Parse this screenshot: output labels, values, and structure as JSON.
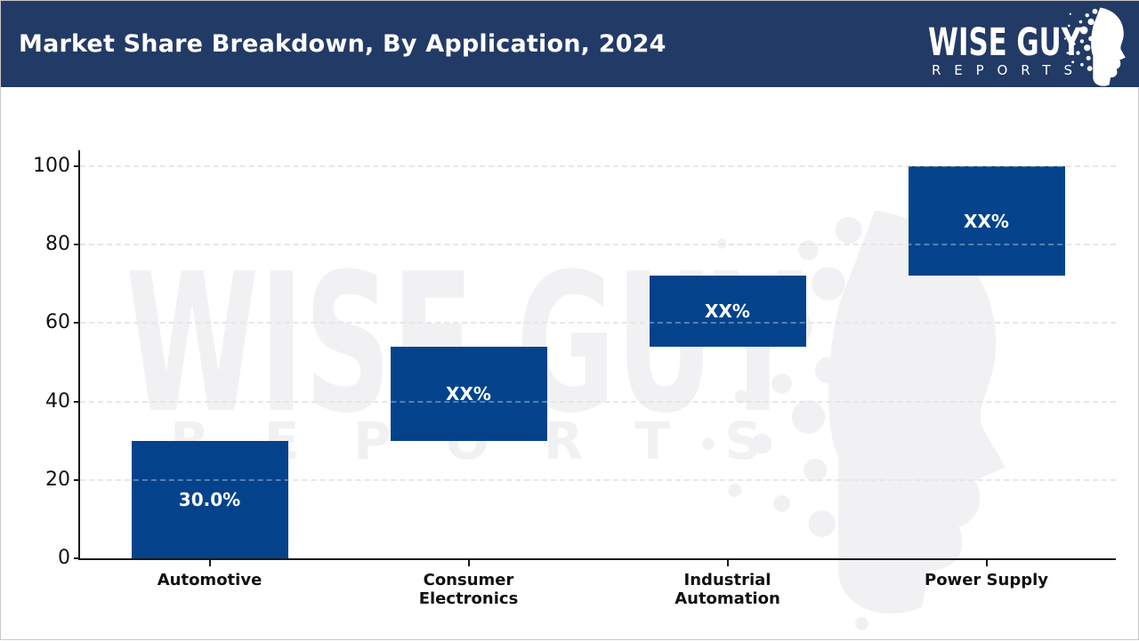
{
  "header": {
    "title": "Market Share Breakdown, By Application, 2024",
    "logo": {
      "line1": "WISE GUY",
      "line2": "REPORTS"
    }
  },
  "watermark": {
    "line1": "WISE GUY",
    "line2": "REPORTS"
  },
  "colors": {
    "header_bg": "#223a66",
    "bar": "#04438c",
    "grid": "#dcdcdc",
    "axis": "#1a1a1a",
    "bar_label": "#ffffff",
    "watermark": "#f1f1f3"
  },
  "chart_data": {
    "type": "bar",
    "subtype": "waterfall",
    "title": "Market Share Breakdown, By Application, 2024",
    "categories": [
      "Automotive",
      "Consumer Electronics",
      "Industrial Automation",
      "Power Supply"
    ],
    "category_lines": [
      [
        "Automotive"
      ],
      [
        "Consumer",
        "Electronics"
      ],
      [
        "Industrial",
        "Automation"
      ],
      [
        "Power Supply"
      ]
    ],
    "values": [
      30,
      24,
      18,
      28
    ],
    "cumulative_start": [
      0,
      30,
      54,
      72
    ],
    "cumulative_end": [
      30,
      54,
      72,
      100
    ],
    "bar_labels": [
      "30.0%",
      "XX%",
      "XX%",
      "XX%"
    ],
    "unit": "%",
    "xlabel": "",
    "ylabel": "",
    "ylim": [
      0,
      100
    ],
    "yticks": [
      0,
      20,
      40,
      60,
      80,
      100
    ],
    "grid": "dashed-horizontal",
    "legend": "none"
  }
}
